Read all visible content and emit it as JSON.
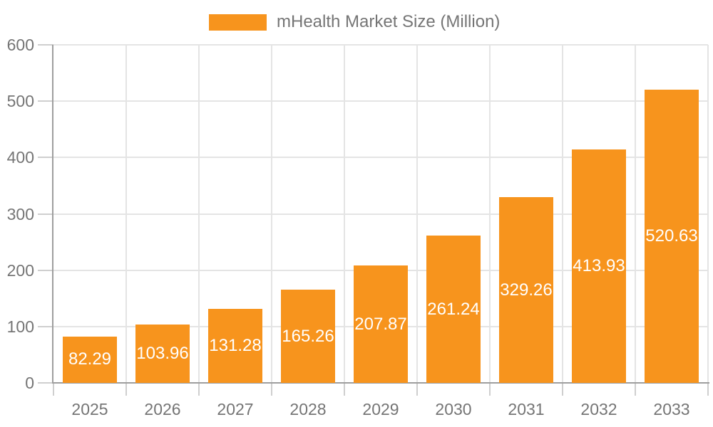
{
  "legend": {
    "label": "mHealth Market Size (Million)"
  },
  "chart_data": {
    "type": "bar",
    "title": "mHealth Market Size (Million)",
    "categories": [
      "2025",
      "2026",
      "2027",
      "2028",
      "2029",
      "2030",
      "2031",
      "2032",
      "2033"
    ],
    "series": [
      {
        "name": "mHealth Market Size (Million)",
        "values": [
          82.29,
          103.96,
          131.28,
          165.26,
          207.87,
          261.24,
          329.26,
          413.93,
          520.63
        ],
        "value_labels": [
          "82.29",
          "103.96",
          "131.28",
          "165.26",
          "207.87",
          "261.24",
          "329.26",
          "413.93",
          "520.63"
        ]
      }
    ],
    "xlabel": "",
    "ylabel": "",
    "ylim": [
      0,
      600
    ],
    "yticks": [
      0,
      100,
      200,
      300,
      400,
      500,
      600
    ],
    "grid": true,
    "legend_position": "top-center",
    "value_labels_shown": true,
    "colors": {
      "bar": "#f7941d",
      "grid_line": "#e4e4e4",
      "tick_line": "#cfcfcf",
      "axis_line": "#9e9e9e",
      "axis_text": "#757575",
      "value_text": "#ffffff",
      "background": "#ffffff"
    }
  }
}
